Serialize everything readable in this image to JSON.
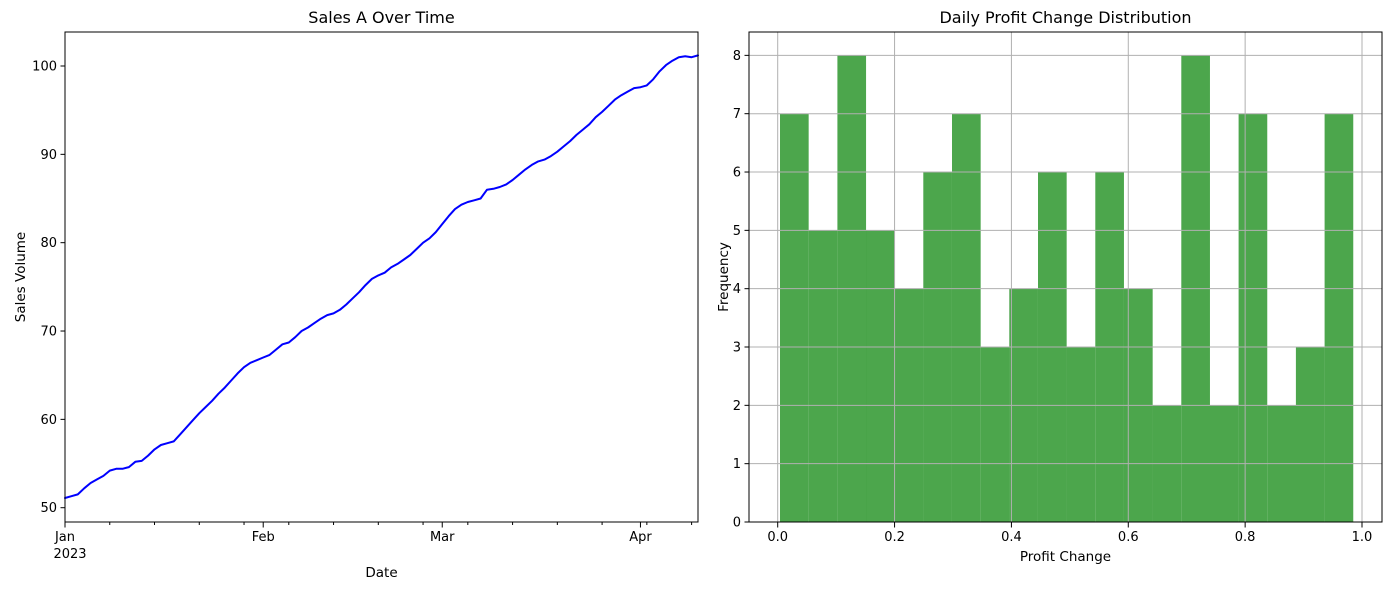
{
  "figure": {
    "background": "#ffffff",
    "text_color": "#000000",
    "spine_color": "#000000",
    "grid_color": "#b0b0b0"
  },
  "chart_data": [
    {
      "type": "line",
      "title": "Sales A Over Time",
      "xlabel": "Date",
      "ylabel": "Sales Volume",
      "grid": false,
      "x_start_date": "2023-01-01",
      "x_interval": "daily",
      "xlim_days": [
        0,
        99
      ],
      "ylim": [
        48.4,
        103.9
      ],
      "x_tick_labels": [
        "Jan",
        "Feb",
        "Mar",
        "Apr"
      ],
      "x_tick_days": [
        0,
        31,
        59,
        90
      ],
      "x_first_tick_sublabel": "2023",
      "x_minor_tick_days": [
        7,
        14,
        21,
        28,
        35,
        42,
        49,
        56,
        63,
        70,
        77,
        84,
        91,
        98
      ],
      "y_ticks": [
        50,
        60,
        70,
        80,
        90,
        100
      ],
      "y_tick_labels": [
        "50",
        "60",
        "70",
        "80",
        "90",
        "100"
      ],
      "series": [
        {
          "name": "Sales A",
          "color": "#0000ff",
          "values": [
            51.1,
            51.3,
            51.5,
            52.2,
            52.8,
            53.2,
            53.6,
            54.2,
            54.4,
            54.4,
            54.6,
            55.2,
            55.3,
            55.9,
            56.6,
            57.1,
            57.3,
            57.5,
            58.3,
            59.1,
            59.9,
            60.7,
            61.4,
            62.1,
            62.9,
            63.6,
            64.4,
            65.2,
            65.9,
            66.4,
            66.7,
            67.0,
            67.3,
            67.9,
            68.5,
            68.7,
            69.3,
            70.0,
            70.4,
            70.9,
            71.4,
            71.8,
            72.0,
            72.4,
            73.0,
            73.7,
            74.4,
            75.2,
            75.9,
            76.3,
            76.6,
            77.2,
            77.6,
            78.1,
            78.6,
            79.3,
            80.0,
            80.5,
            81.2,
            82.1,
            83.0,
            83.8,
            84.3,
            84.6,
            84.8,
            85.0,
            86.0,
            86.1,
            86.3,
            86.6,
            87.1,
            87.7,
            88.3,
            88.8,
            89.2,
            89.4,
            89.8,
            90.3,
            90.9,
            91.5,
            92.2,
            92.8,
            93.4,
            94.2,
            94.8,
            95.5,
            96.2,
            96.7,
            97.1,
            97.5,
            97.6,
            97.8,
            98.5,
            99.4,
            100.1,
            100.6,
            101.0,
            101.1,
            101.0,
            101.2
          ]
        }
      ]
    },
    {
      "type": "histogram",
      "title": "Daily Profit Change Distribution",
      "xlabel": "Profit Change",
      "ylabel": "Frequency",
      "grid": true,
      "bar_color": "#008000",
      "bar_opacity": 0.7,
      "bin_start": 0.004,
      "bin_width": 0.04905,
      "frequencies": [
        7,
        5,
        8,
        5,
        4,
        6,
        7,
        3,
        4,
        6,
        3,
        6,
        4,
        2,
        8,
        2,
        7,
        2,
        3,
        7
      ],
      "xlim": [
        -0.049,
        1.034
      ],
      "ylim": [
        0,
        8.4
      ],
      "x_ticks": [
        0.0,
        0.2,
        0.4,
        0.6,
        0.8,
        1.0
      ],
      "x_tick_labels": [
        "0.0",
        "0.2",
        "0.4",
        "0.6",
        "0.8",
        "1.0"
      ],
      "y_ticks": [
        0,
        1,
        2,
        3,
        4,
        5,
        6,
        7,
        8
      ],
      "y_tick_labels": [
        "0",
        "1",
        "2",
        "3",
        "4",
        "5",
        "6",
        "7",
        "8"
      ]
    }
  ]
}
